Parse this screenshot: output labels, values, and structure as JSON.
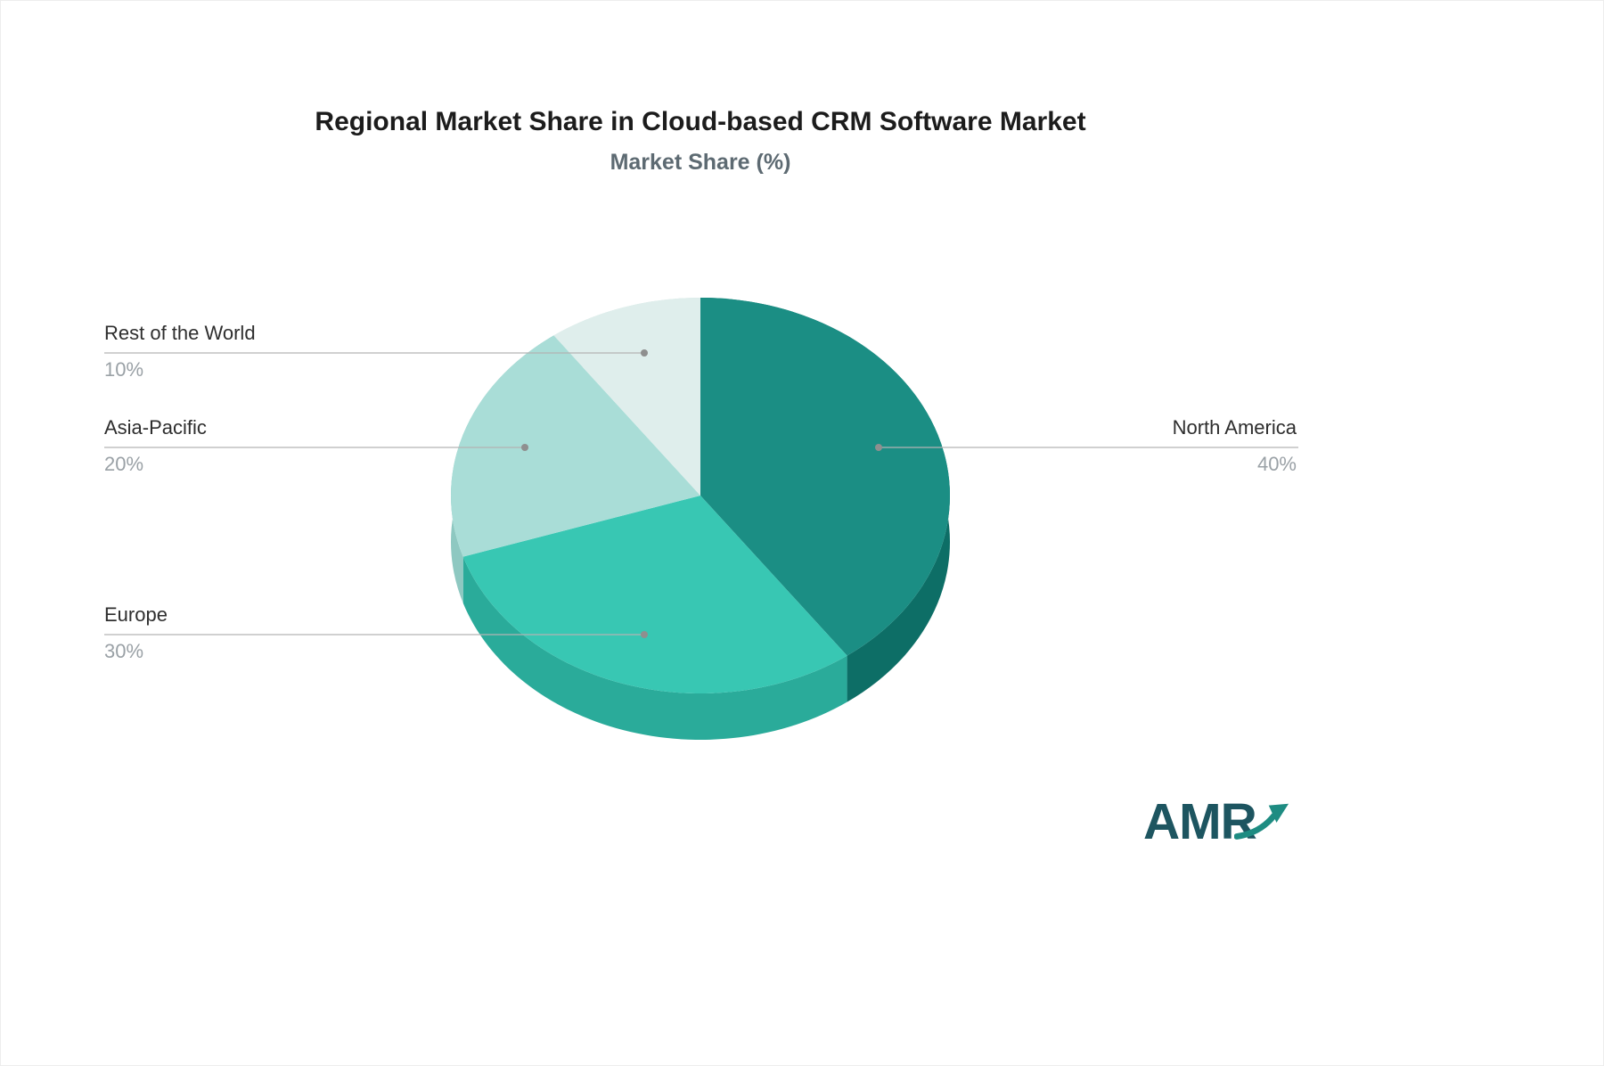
{
  "header": {
    "title": "Regional Market Share in Cloud-based CRM Software Market",
    "subtitle": "Market Share (%)"
  },
  "chart_data": {
    "type": "pie",
    "title": "Regional Market Share in Cloud-based CRM Software Market",
    "subtitle": "Market Share (%)",
    "unit": "%",
    "effect": "3d",
    "start_angle_deg": -90,
    "clockwise": true,
    "legend_position": "none",
    "label_style": "callout-leader-lines",
    "slices": [
      {
        "label": "North America",
        "value": 40,
        "pct_label": "40%",
        "color": "#1b8e84",
        "side_color": "#0d6e66"
      },
      {
        "label": "Europe",
        "value": 30,
        "pct_label": "30%",
        "color": "#38c7b3",
        "side_color": "#2aab9a"
      },
      {
        "label": "Asia-Pacific",
        "value": 20,
        "pct_label": "20%",
        "color": "#a9ddd7",
        "side_color": "#8ec8c1"
      },
      {
        "label": "Rest of the World",
        "value": 10,
        "pct_label": "10%",
        "color": "#dfeeec",
        "side_color": "#c3ded9"
      }
    ]
  },
  "logo": {
    "text": "AMR",
    "color": "#1d5560",
    "arrow_color": "#1e8c82"
  }
}
